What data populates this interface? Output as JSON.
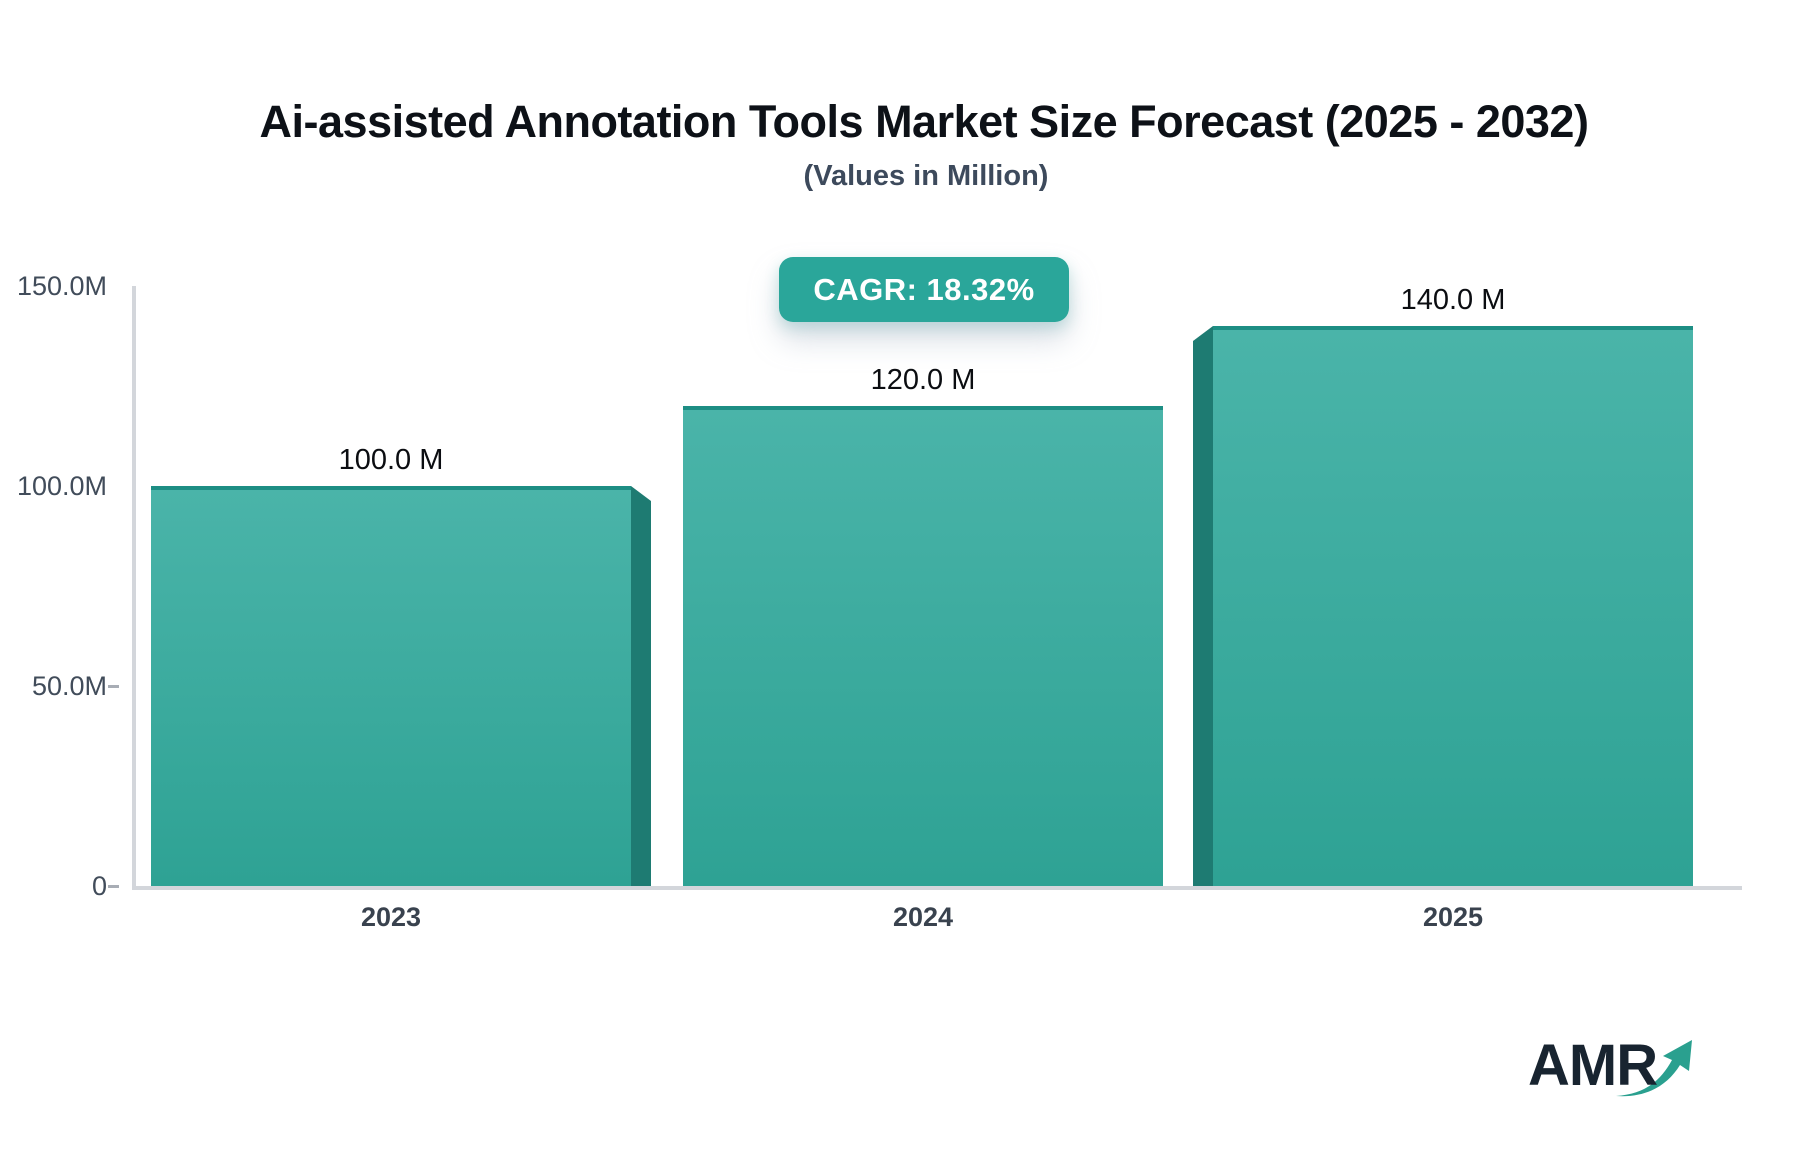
{
  "page": {
    "title": "Ai-assisted Annotation Tools Market Size Forecast (2025 - 2032)",
    "subtitle": "(Values in Million)",
    "cagr_badge_label": "CAGR: 18.32%",
    "logo_text": "AMR"
  },
  "chart_data": {
    "type": "bar",
    "title": "Ai-assisted Annotation Tools Market Size Forecast (2025 - 2032)",
    "subtitle": "(Values in Million)",
    "annotation": "CAGR: 18.32%",
    "cagr_percent": 18.32,
    "unit": "Million",
    "categories": [
      "2023",
      "2024",
      "2025"
    ],
    "values": [
      100.0,
      120.0,
      140.0
    ],
    "value_labels": [
      "100.0 M",
      "120.0 M",
      "140.0 M"
    ],
    "xlabel": "",
    "ylabel": "",
    "ylim": [
      0,
      150
    ],
    "grid": false,
    "legend": false,
    "y_ticks": [
      {
        "label": "150.0M",
        "value": 150,
        "dash": false
      },
      {
        "label": "100.0M",
        "value": 100,
        "dash": false
      },
      {
        "label": "50.0M",
        "value": 50,
        "dash": true
      },
      {
        "label": "0",
        "value": 0,
        "dash": true
      }
    ],
    "colors": {
      "accent_teal": "#2aa69a",
      "bar_gradient_top": "#4ab4a9",
      "bar_gradient_bottom": "#2ea294",
      "bar_top_edge": "#1d8e84",
      "bar_side_panel": "#1e7b72",
      "axis_line": "#d3d6db",
      "badge_background": "#2aa69a",
      "badge_text": "#ffffff",
      "logo_arrow": "#2aa08f"
    }
  }
}
